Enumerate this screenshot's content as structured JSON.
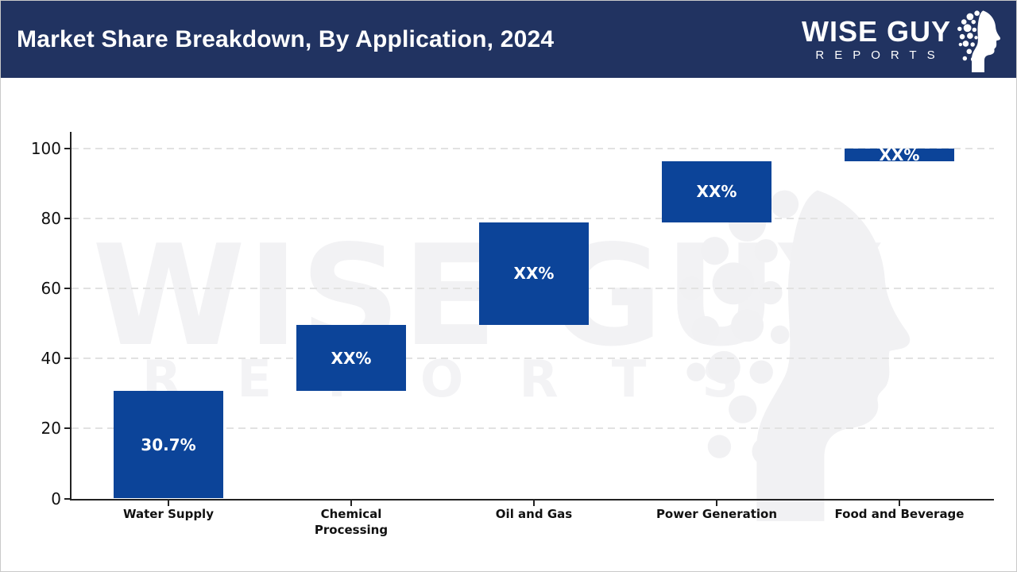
{
  "header": {
    "title": "Market Share Breakdown, By Application, 2024",
    "bg_color": "#213361",
    "logo": {
      "wordmark": "WISE GUY",
      "subtitle": "REPORTS"
    }
  },
  "watermark": {
    "line1": "WISE GUY",
    "line2": "REPORTS"
  },
  "chart_data": {
    "type": "bar",
    "subtype": "waterfall",
    "title": "Market Share Breakdown, By Application, 2024",
    "categories": [
      "Water Supply",
      "Chemical Processing",
      "Oil and Gas",
      "Power Generation",
      "Food and Beverage"
    ],
    "category_lines": [
      [
        "Water Supply"
      ],
      [
        "Chemical",
        "Processing"
      ],
      [
        "Oil and Gas"
      ],
      [
        "Power Generation"
      ],
      [
        "Food and Beverage"
      ]
    ],
    "segments": [
      {
        "category": "Water Supply",
        "label": "30.7%",
        "start": 0,
        "end": 30.7,
        "value": 30.7
      },
      {
        "category": "Chemical Processing",
        "label": "XX%",
        "start": 30.7,
        "end": 49.6,
        "value": 18.9
      },
      {
        "category": "Oil and Gas",
        "label": "XX%",
        "start": 49.6,
        "end": 78.9,
        "value": 29.3
      },
      {
        "category": "Power Generation",
        "label": "XX%",
        "start": 78.9,
        "end": 96.4,
        "value": 17.5
      },
      {
        "category": "Food and Beverage",
        "label": "XX%",
        "start": 96.4,
        "end": 100,
        "value": 3.6
      }
    ],
    "yticks": [
      0,
      20,
      40,
      60,
      80,
      100
    ],
    "ylim": [
      0,
      105
    ],
    "xlabel": "",
    "ylabel": "",
    "grid": "horizontal-dashed",
    "legend": "none",
    "bar_color": "#0c4499",
    "bar_label_color": "#ffffff",
    "axis_color": "#222222"
  }
}
